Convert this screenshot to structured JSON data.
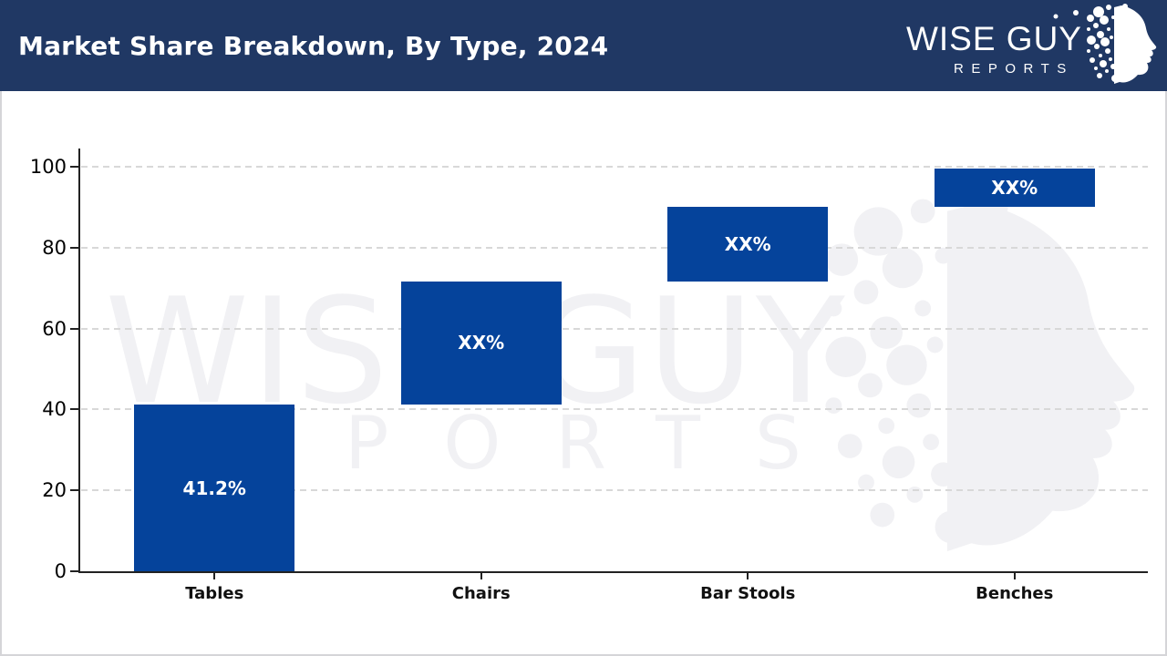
{
  "header": {
    "title": "Market Share Breakdown, By Type, 2024",
    "logo": {
      "line1": "WISE GUY",
      "line2": "REPORTS"
    },
    "background_color": "#203864",
    "text_color": "#ffffff"
  },
  "watermark": {
    "line1": "WISE GUY",
    "line2": "REPORTS"
  },
  "chart_data": {
    "type": "bar",
    "variant": "waterfall",
    "title": "Market Share Breakdown, By Type, 2024",
    "categories": [
      "Tables",
      "Chairs",
      "Bar Stools",
      "Benches"
    ],
    "segments": [
      {
        "category": "Tables",
        "start": 0,
        "end": 41.2,
        "label": "41.2%"
      },
      {
        "category": "Chairs",
        "start": 41.2,
        "end": 71.7,
        "label": "XX%"
      },
      {
        "category": "Bar Stools",
        "start": 71.7,
        "end": 90.0,
        "label": "XX%"
      },
      {
        "category": "Benches",
        "start": 90.0,
        "end": 99.5,
        "label": "XX%"
      }
    ],
    "xlabel": "",
    "ylabel": "",
    "ylim": [
      0,
      105
    ],
    "yticks": [
      0,
      20,
      40,
      60,
      80,
      100
    ],
    "grid": {
      "horizontal": true,
      "style": "dashed",
      "color": "#d8d8d8"
    },
    "legend": null,
    "bar_color": "#05439b",
    "bar_label_color": "#ffffff"
  }
}
